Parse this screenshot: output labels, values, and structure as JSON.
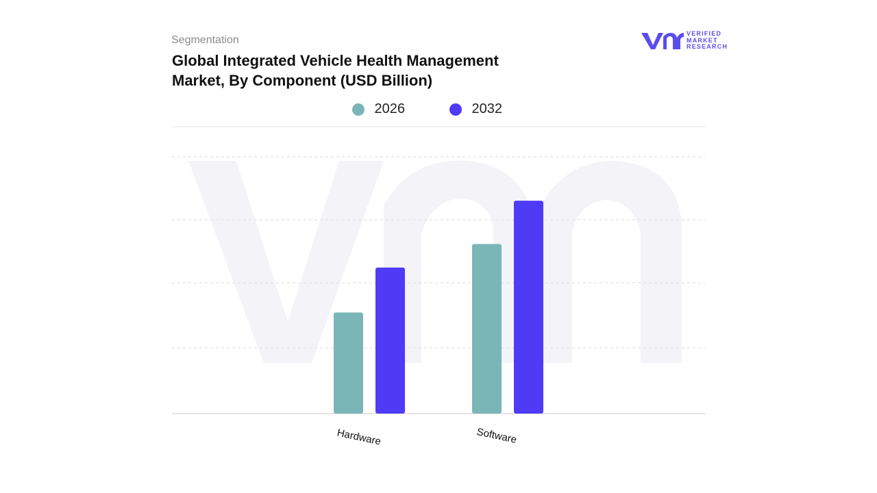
{
  "header": {
    "eyebrow": "Segmentation",
    "title_line1": "Global Integrated Vehicle Health Management",
    "title_line2": "Market, By Component (USD Billion)"
  },
  "logo": {
    "line1": "VERIFIED",
    "line2": "MARKET",
    "line3": "RESEARCH",
    "mark": "vmr",
    "color": "#5b4cf0"
  },
  "colors": {
    "series_2026": "#7ab5b8",
    "series_2032": "#4f3bf5",
    "grid": "#e6e6e6",
    "watermark": "#f3f3f8"
  },
  "chart_data": {
    "type": "bar",
    "categories": [
      "Hardware",
      "Software"
    ],
    "series": [
      {
        "name": "2026",
        "values": [
          3.1,
          5.2
        ]
      },
      {
        "name": "2032",
        "values": [
          4.48,
          6.53
        ]
      }
    ],
    "ylim": [
      0,
      8.8
    ],
    "grid": true,
    "legend": "top-center",
    "xlabel": "",
    "ylabel": ""
  }
}
